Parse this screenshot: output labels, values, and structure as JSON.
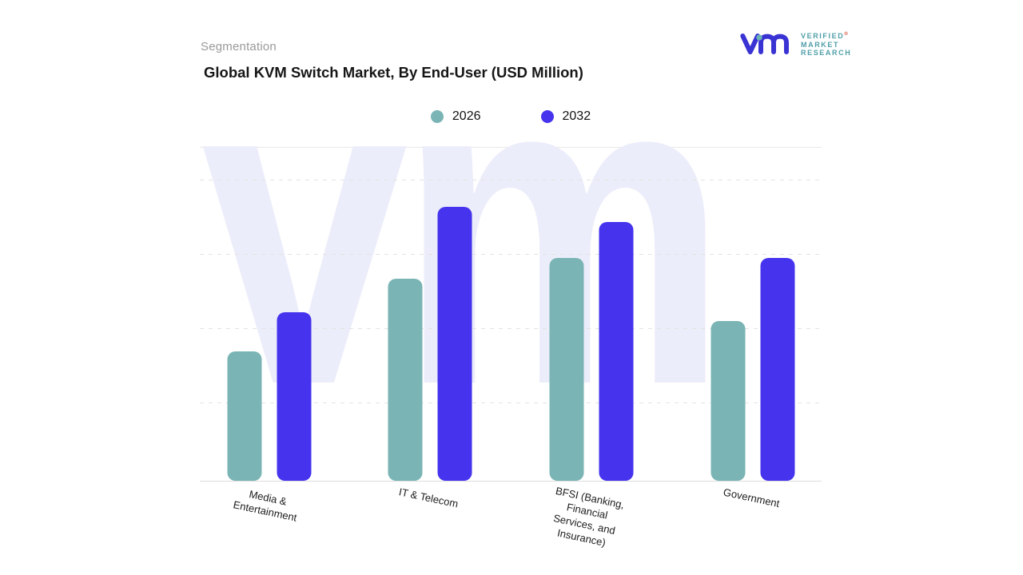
{
  "header": {
    "eyebrow": "Segmentation",
    "title": "Global KVM Switch Market, By End-User (USD Million)"
  },
  "logo": {
    "brand_lines": [
      "VERIFIED",
      "MARKET",
      "RESEARCH"
    ],
    "registered_mark": "®",
    "monogram_color": "#3a33d4",
    "accent_color": "#6ab4b5",
    "text_color": "#4f9fa8"
  },
  "legend": [
    {
      "label": "2026",
      "color": "#7ab4b4"
    },
    {
      "label": "2032",
      "color": "#4533ee"
    }
  ],
  "watermark": {
    "text": "vm"
  },
  "chart_data": {
    "type": "bar",
    "title": "Global KVM Switch Market, By End-User (USD Million)",
    "categories": [
      "Media &\nEntertainment",
      "IT & Telecom",
      "BFSI (Banking,\nFinancial\nServices, and\nInsurance)",
      "Government"
    ],
    "series": [
      {
        "name": "2026",
        "color": "#7ab4b4",
        "values": [
          43,
          67,
          74,
          53
        ]
      },
      {
        "name": "2032",
        "color": "#4533ee",
        "values": [
          56,
          91,
          86,
          74
        ]
      }
    ],
    "xlabel": "",
    "ylabel": "",
    "value_axis_visible": false,
    "value_scale_note": "No numeric axis shown; values are estimated relative bar heights on a 0-100 scale",
    "ylim": [
      0,
      100
    ],
    "grid": "dashed-horizontal",
    "legend_position": "top-center"
  }
}
